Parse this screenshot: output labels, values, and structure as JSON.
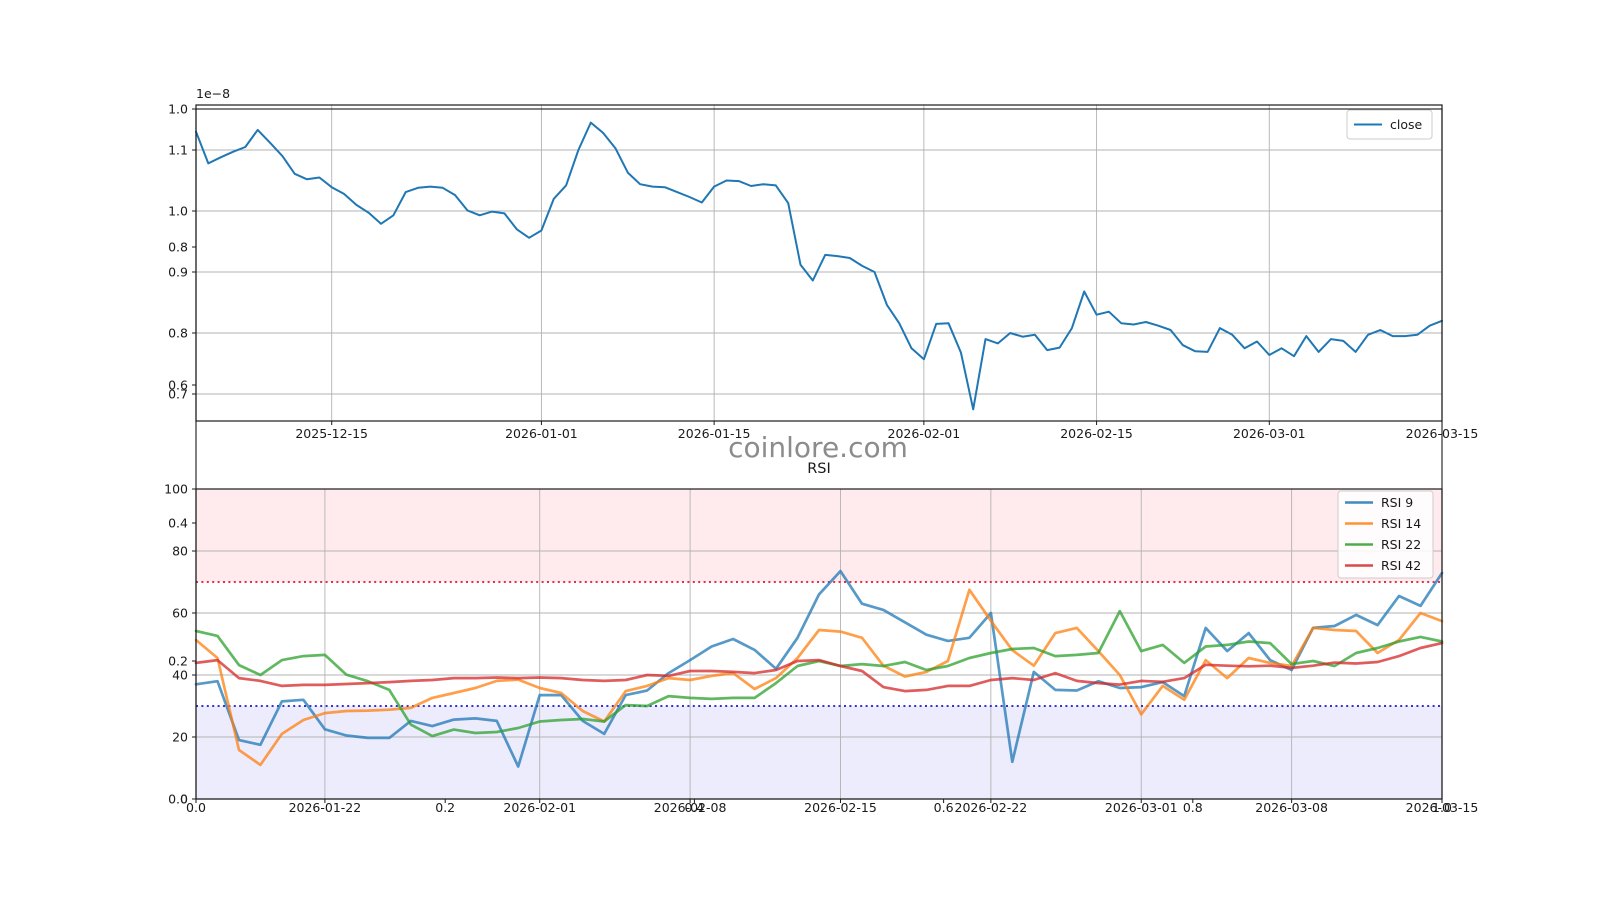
{
  "labels": {
    "watermark": "coinlore.com",
    "rsi_title": "RSI",
    "price_offset_label": "1e−8"
  },
  "colors": {
    "close_line": "#1f77b4",
    "rsi9": "#1f77b4",
    "rsi14": "#ff7f0e",
    "rsi22": "#2ca02c",
    "rsi42": "#d62728",
    "grid": "#b3b3b3",
    "axes": "#1a1a1a",
    "overbought_band": "rgba(255,30,50,0.09)",
    "oversold_band": "rgba(65,65,235,0.10)",
    "overbought_dotted": "#dc1432",
    "oversold_dotted": "#1818cc",
    "legend_border": "#cccccc",
    "watermark_gray": "#8c8c8c"
  },
  "overlay_axis": {
    "x_tick_labels": [
      "0.0",
      "0.2",
      "0.4",
      "0.6",
      "0.8",
      "1.0"
    ],
    "y_tick_labels": [
      "1.0",
      "0.8",
      "0.6",
      "0.4",
      "0.2",
      "0.0"
    ]
  },
  "chart_data": [
    {
      "type": "line",
      "panel": "price",
      "title": "",
      "ylabel": "",
      "y_offset_label": "1e−8",
      "legend_position": "upper right",
      "grid": true,
      "x_start_date": "2025-12-04",
      "x_frequency": "daily",
      "x_tick_labels": [
        "2025-12-15",
        "2026-01-01",
        "2026-01-15",
        "2026-02-01",
        "2026-02-15",
        "2026-03-01",
        "2026-03-15"
      ],
      "y_tick_labels": [
        "1.1",
        "1.0",
        "0.9",
        "0.8",
        "0.7"
      ],
      "ylim": [
        0.656,
        1.174
      ],
      "series": [
        {
          "name": "close",
          "color": "#1f77b4",
          "values": [
            1.13,
            1.078,
            1.088,
            1.097,
            1.105,
            1.133,
            1.112,
            1.09,
            1.061,
            1.052,
            1.055,
            1.039,
            1.028,
            1.01,
            0.997,
            0.979,
            0.993,
            1.031,
            1.038,
            1.04,
            1.038,
            1.026,
            1.001,
            0.993,
            0.999,
            0.996,
            0.97,
            0.956,
            0.968,
            1.02,
            1.042,
            1.1,
            1.145,
            1.128,
            1.103,
            1.063,
            1.044,
            1.04,
            1.039,
            1.031,
            1.023,
            1.014,
            1.04,
            1.05,
            1.049,
            1.041,
            1.044,
            1.042,
            1.013,
            0.912,
            0.886,
            0.928,
            0.926,
            0.923,
            0.91,
            0.9,
            0.846,
            0.816,
            0.775,
            0.757,
            0.815,
            0.816,
            0.768,
            0.675,
            0.79,
            0.783,
            0.8,
            0.794,
            0.797,
            0.772,
            0.776,
            0.808,
            0.868,
            0.83,
            0.835,
            0.816,
            0.814,
            0.818,
            0.812,
            0.805,
            0.78,
            0.77,
            0.769,
            0.808,
            0.797,
            0.775,
            0.786,
            0.764,
            0.775,
            0.762,
            0.795,
            0.769,
            0.79,
            0.787,
            0.769,
            0.797,
            0.805,
            0.795,
            0.795,
            0.797,
            0.812,
            0.82
          ]
        }
      ]
    },
    {
      "type": "line",
      "panel": "rsi",
      "title": "RSI",
      "legend_position": "upper right",
      "grid": true,
      "x_start_date": "2026-01-16",
      "x_frequency": "daily",
      "x_tick_labels": [
        "2026-01-22",
        "2026-02-01",
        "2026-02-08",
        "2026-02-15",
        "2026-02-22",
        "2026-03-01",
        "2026-03-08",
        "2026-03-15"
      ],
      "y_tick_labels": [
        "100",
        "80",
        "60",
        "40",
        "20",
        "0"
      ],
      "ylim": [
        0,
        100
      ],
      "overbought_level": 70,
      "oversold_level": 30,
      "series": [
        {
          "name": "RSI 9",
          "color": "#1f77b4",
          "values": [
            37,
            38,
            19,
            17.5,
            31.5,
            32,
            22.5,
            20.5,
            19.7,
            19.7,
            25.2,
            23.5,
            25.6,
            26,
            25.2,
            10.5,
            33.5,
            33.5,
            25.2,
            21,
            33.5,
            35,
            40.6,
            44.8,
            49.2,
            51.6,
            48.1,
            42,
            52,
            66,
            73.5,
            63,
            61,
            57,
            53,
            51,
            52,
            60,
            12,
            41,
            35.2,
            35,
            38,
            35.8,
            36.1,
            37.7,
            33.2,
            55.2,
            47.7,
            53.5,
            44.8,
            41.6,
            55.2,
            55.8,
            59.4,
            56.1,
            65.5,
            62.3,
            72.9
          ]
        },
        {
          "name": "RSI 14",
          "color": "#ff7f0e",
          "values": [
            51.3,
            45.5,
            15.8,
            11,
            21,
            25.5,
            27.7,
            28.4,
            28.5,
            28.8,
            29.4,
            32.6,
            34.2,
            35.8,
            38.1,
            38.5,
            35.8,
            34.2,
            28.4,
            25,
            34.8,
            36.5,
            39,
            38.4,
            39.7,
            40.6,
            35.5,
            39,
            45.5,
            54.5,
            54,
            52,
            43,
            39.5,
            41,
            44.5,
            67.5,
            57.5,
            48,
            43,
            53.5,
            55.2,
            47.7,
            40,
            27.3,
            36.5,
            32,
            44.8,
            39,
            45.5,
            43.9,
            42.9,
            55.2,
            54.5,
            54.2,
            47.1,
            51.3,
            60,
            57.4
          ]
        },
        {
          "name": "RSI 22",
          "color": "#2ca02c",
          "values": [
            54.2,
            52.6,
            43.2,
            40,
            44.8,
            46.1,
            46.5,
            40.1,
            38,
            35.2,
            24,
            20.3,
            22.4,
            21.3,
            21.6,
            22.9,
            25,
            25.5,
            25.8,
            25,
            30.3,
            30,
            33.2,
            32.6,
            32.3,
            32.6,
            32.6,
            37.4,
            42.9,
            44.5,
            42.9,
            43.5,
            42.9,
            44.2,
            41.6,
            42.9,
            45.5,
            47.1,
            48.4,
            48.7,
            46.1,
            46.5,
            47.1,
            60.6,
            47.7,
            49.7,
            43.9,
            49.2,
            49.7,
            50.8,
            50.3,
            43.5,
            44.5,
            42.9,
            47.1,
            48.7,
            50.8,
            52.3,
            50.8
          ]
        },
        {
          "name": "RSI 42",
          "color": "#d62728",
          "values": [
            43.9,
            44.8,
            39,
            38.1,
            36.5,
            36.8,
            36.8,
            37.1,
            37.4,
            37.7,
            38.1,
            38.4,
            39,
            39,
            39.2,
            39,
            39.2,
            39,
            38.4,
            38.1,
            38.4,
            40,
            39.7,
            41.3,
            41.3,
            41,
            40.6,
            41.6,
            44.5,
            44.8,
            42.9,
            41.3,
            36.1,
            34.8,
            35.2,
            36.5,
            36.5,
            38.4,
            39,
            38.4,
            40.6,
            38.1,
            37.4,
            36.9,
            38.1,
            37.8,
            39,
            43.3,
            43,
            42.8,
            43,
            42.3,
            43,
            44,
            43.7,
            44.2,
            46.1,
            48.7,
            50.3
          ]
        }
      ]
    }
  ]
}
